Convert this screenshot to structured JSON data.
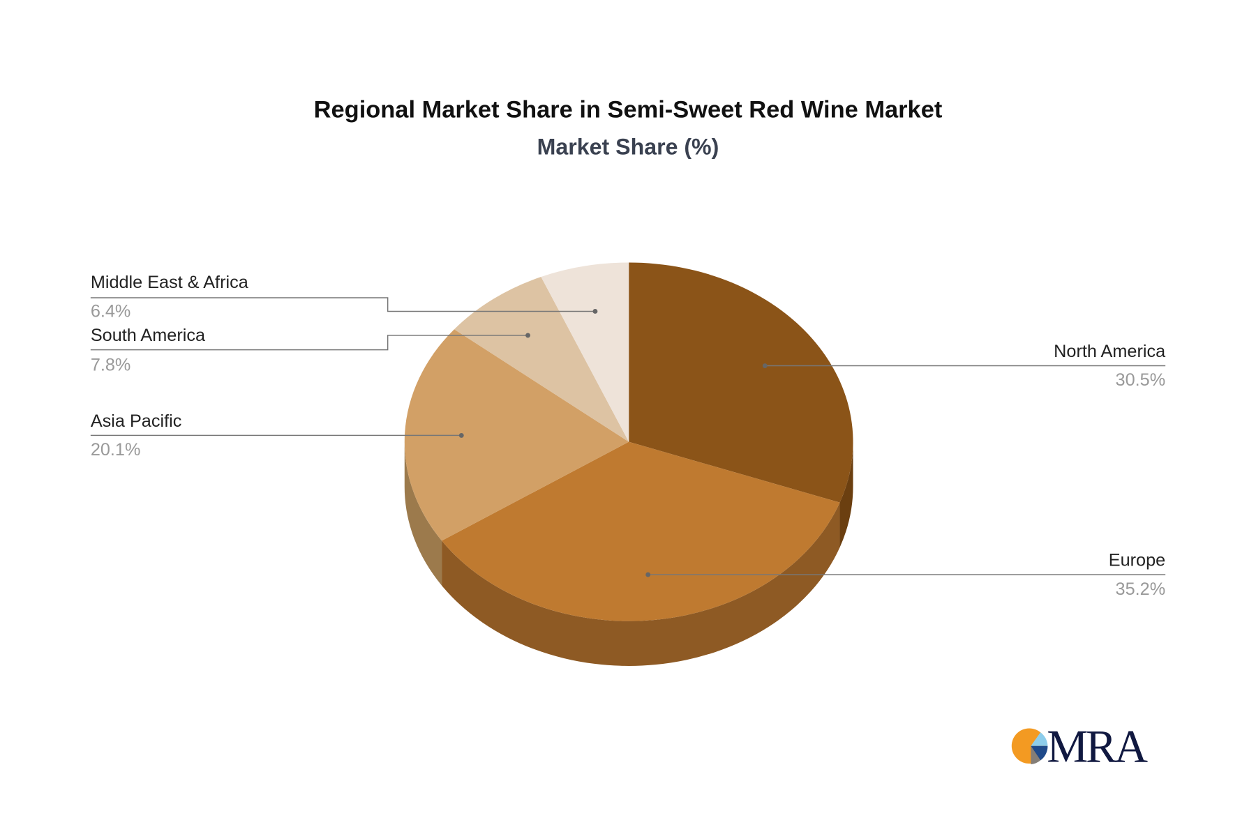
{
  "chart_data": {
    "type": "pie",
    "style": "3d",
    "title": "Regional Market Share in Semi-Sweet Red Wine Market",
    "subtitle": "Market Share (%)",
    "slices": [
      {
        "label": "North America",
        "value": 30.5,
        "value_label": "30.5%",
        "color": "#8B5418",
        "side_color": "#6B3F10"
      },
      {
        "label": "Europe",
        "value": 35.2,
        "value_label": "35.2%",
        "color": "#BF7A30",
        "side_color": "#8E5A24"
      },
      {
        "label": "Asia Pacific",
        "value": 20.1,
        "value_label": "20.1%",
        "color": "#D2A066",
        "side_color": "#9C7A4C"
      },
      {
        "label": "South America",
        "value": 7.8,
        "value_label": "7.8%",
        "color": "#DDC3A3",
        "side_color": "#A8927A"
      },
      {
        "label": "Middle East & Africa",
        "value": 6.4,
        "value_label": "6.4%",
        "color": "#EEE3D9",
        "side_color": "#B5ABA2"
      }
    ]
  },
  "logo": {
    "text": "MRA",
    "colors": [
      "#F39A22",
      "#8DCDEB",
      "#1F4A8A",
      "#847E77"
    ]
  }
}
